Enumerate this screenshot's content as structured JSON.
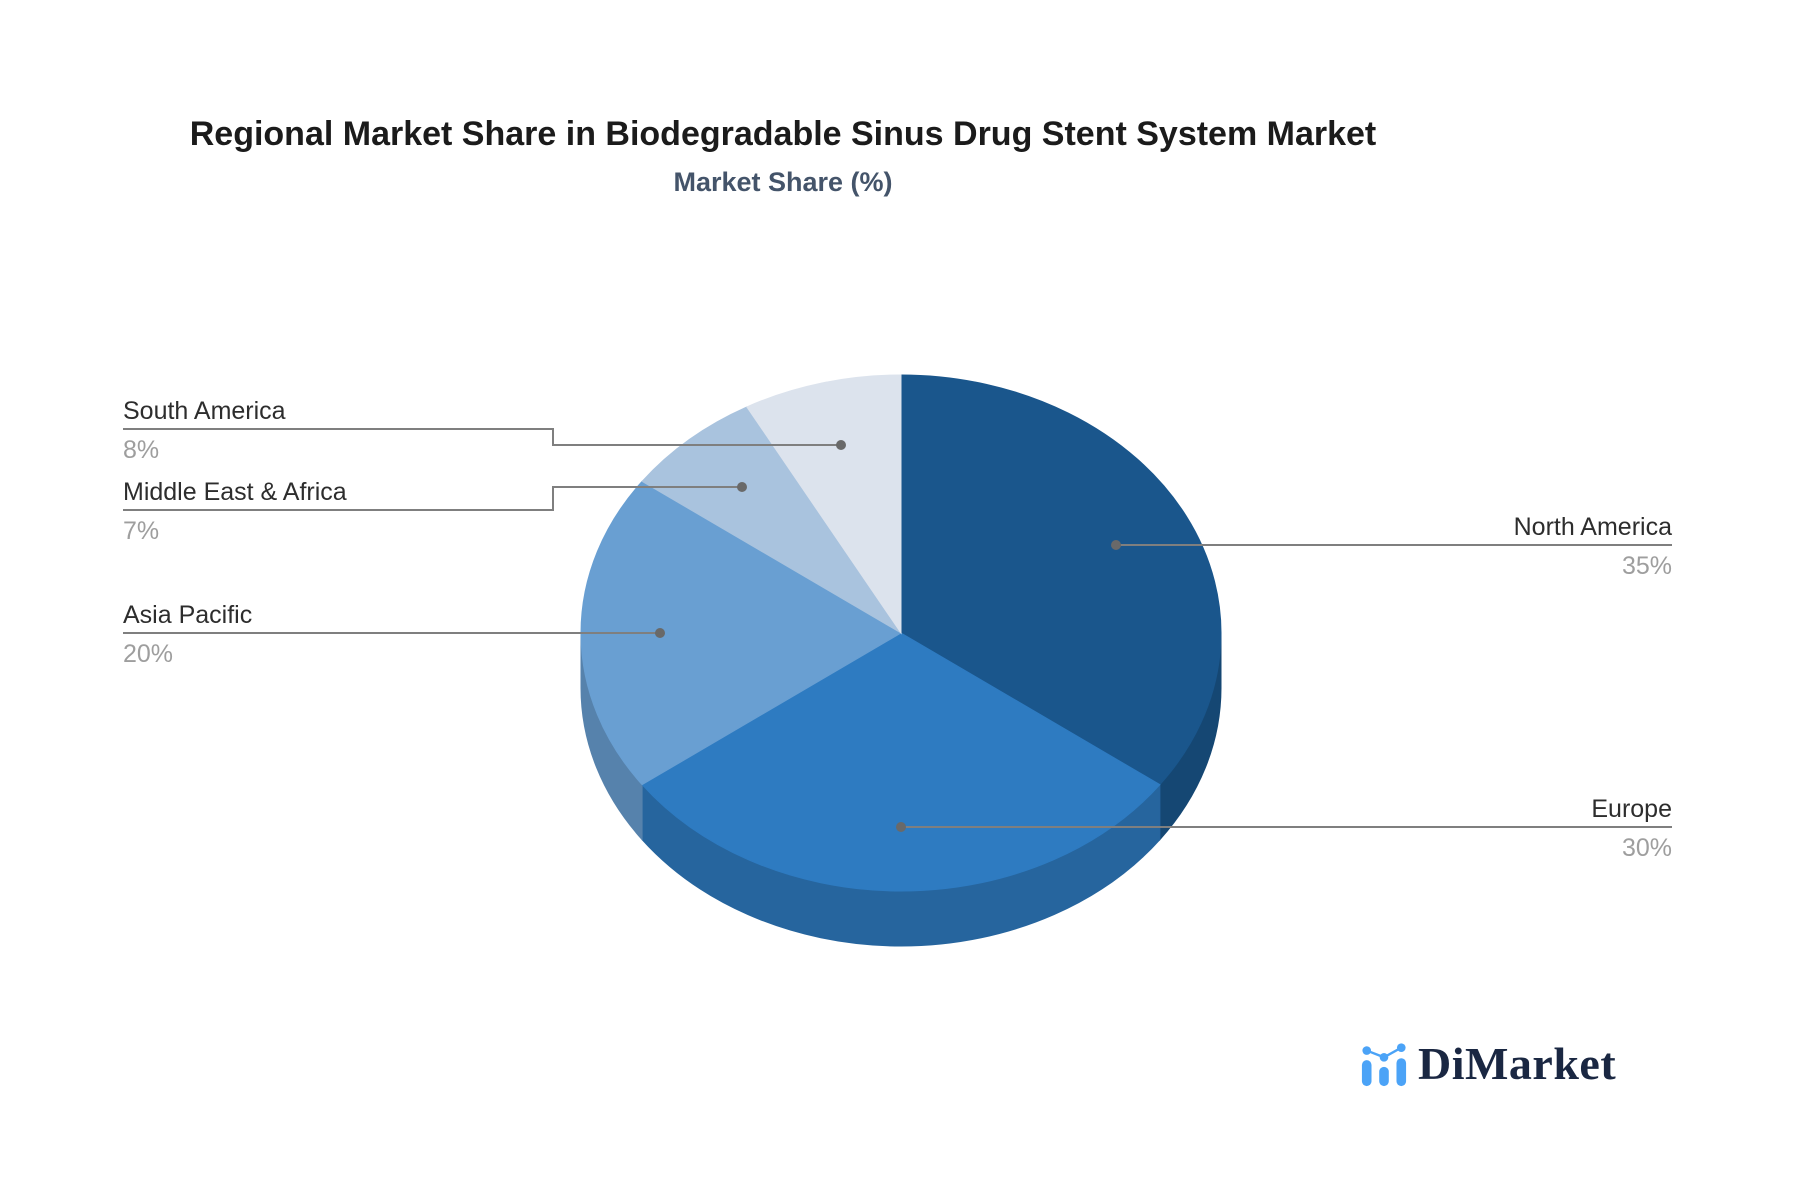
{
  "chart_data": {
    "type": "pie",
    "title": "Regional Market Share in Biodegradable Sinus Drug Stent System Market",
    "subtitle": "Market Share (%)",
    "unit": "%",
    "effect": "3d",
    "start_angle": "12-oclock-clockwise",
    "legend_position": "none",
    "segments": [
      {
        "label": "North America",
        "value": 35,
        "pct_label": "35%",
        "color": "#1A568C"
      },
      {
        "label": "Europe",
        "value": 30,
        "pct_label": "30%",
        "color": "#2E7BC1"
      },
      {
        "label": "Asia Pacific",
        "value": 20,
        "pct_label": "20%",
        "color": "#699FD2"
      },
      {
        "label": "Middle East & Africa",
        "value": 7,
        "pct_label": "7%",
        "color": "#A9C3DE"
      },
      {
        "label": "South America",
        "value": 8,
        "pct_label": "8%",
        "color": "#DCE3ED"
      }
    ],
    "styles": {
      "label_color": "#2D2D2D",
      "pct_color": "#9E9E9E",
      "leader_line_color": "#7F7F7F",
      "leader_dot_color": "#696969",
      "title_color": "#1B1B1B",
      "subtitle_color": "#44546A"
    }
  },
  "brand": {
    "name": "DiMarket",
    "icon": "bar-line-chart-icon",
    "text_color": "#1A2742",
    "icon_color": "#4BA3F7"
  }
}
